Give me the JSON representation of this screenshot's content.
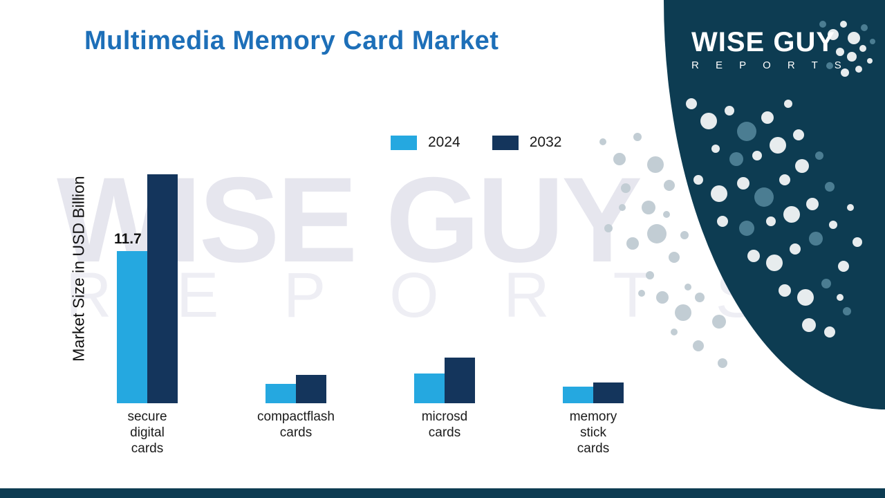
{
  "title": "Multimedia Memory Card Market",
  "logo": {
    "line1": "WISE GUY",
    "line2": "R E P O R T S"
  },
  "watermark": {
    "line1": "WISE GUY",
    "line2": "R E P O R T S"
  },
  "legend": [
    {
      "label": "2024",
      "color": "#25a8e0"
    },
    {
      "label": "2032",
      "color": "#14355c"
    }
  ],
  "ylabel": "Market Size in USD Billion",
  "chart_data": {
    "type": "bar",
    "title": "Multimedia Memory Card Market",
    "ylabel": "Market Size in USD Billion",
    "xlabel": "",
    "ylim": [
      0,
      20
    ],
    "grid": false,
    "legend_position": "top",
    "categories": [
      "secure digital cards",
      "compactflash cards",
      "microsd cards",
      "memory stick cards"
    ],
    "category_label_lines": [
      [
        "secure",
        "digital",
        "cards"
      ],
      [
        "compactflash",
        "cards"
      ],
      [
        "microsd",
        "cards"
      ],
      [
        "memory",
        "stick",
        "cards"
      ]
    ],
    "series": [
      {
        "name": "2024",
        "color": "#25a8e0",
        "values": [
          11.7,
          1.5,
          2.3,
          1.3
        ]
      },
      {
        "name": "2032",
        "color": "#14355c",
        "values": [
          17.6,
          2.2,
          3.5,
          1.6
        ]
      }
    ],
    "value_labels": [
      {
        "series": "2024",
        "category": "secure digital cards",
        "text": "11.7"
      }
    ]
  }
}
